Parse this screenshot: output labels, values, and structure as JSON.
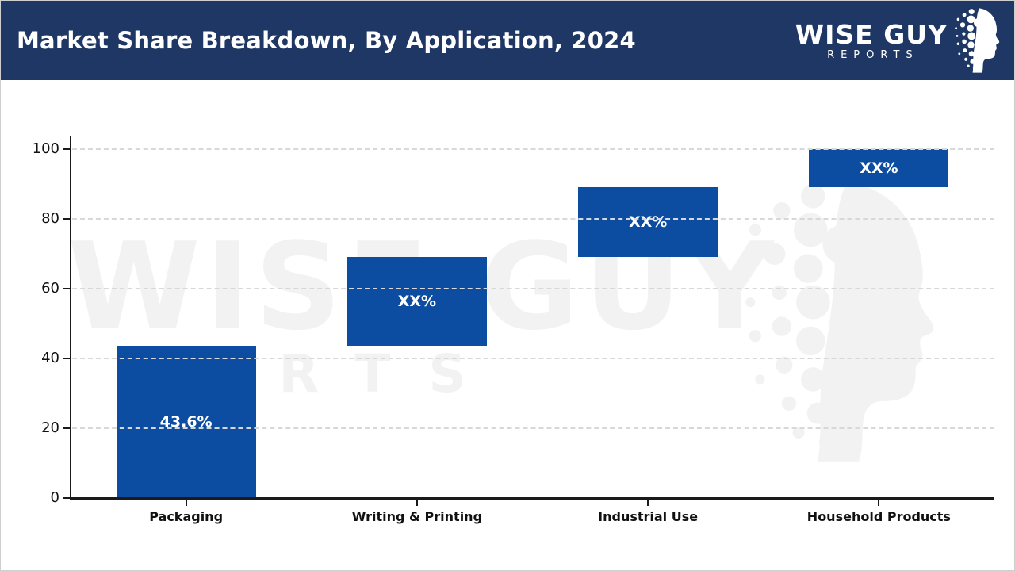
{
  "header": {
    "title": "Market Share Breakdown, By Application, 2024",
    "background_color": "#1F3764",
    "logo": {
      "line1": "WISE GUY",
      "line2": "REPORTS"
    }
  },
  "watermark": {
    "line1": "WISE GUY",
    "line2": "PORTS",
    "head_icon": "dotted-head-profile",
    "color": "#f2f2f2"
  },
  "chart_data": {
    "type": "bar",
    "subtype": "waterfall",
    "title": "Market Share Breakdown, By Application, 2024",
    "categories": [
      "Packaging",
      "Writing & Printing",
      "Industrial Use",
      "Household Products"
    ],
    "series": [
      {
        "name": "Market Share",
        "segments": [
          {
            "category": "Packaging",
            "start": 0,
            "end": 43.6,
            "label": "43.6%"
          },
          {
            "category": "Writing & Printing",
            "start": 43.6,
            "end": 69.2,
            "label": "XX%"
          },
          {
            "category": "Industrial Use",
            "start": 69.2,
            "end": 89.2,
            "label": "XX%"
          },
          {
            "category": "Household Products",
            "start": 89.2,
            "end": 100,
            "label": "XX%"
          }
        ]
      }
    ],
    "xlabel": "",
    "ylabel": "",
    "ylim": [
      0,
      100
    ],
    "yticks": [
      0,
      20,
      40,
      60,
      80,
      100
    ],
    "grid": "horizontal-dashed",
    "legend": "none",
    "bar_color": "#0C4DA2",
    "axis_color": "#1a1a1a",
    "gridline_color": "#d8d8d8"
  }
}
